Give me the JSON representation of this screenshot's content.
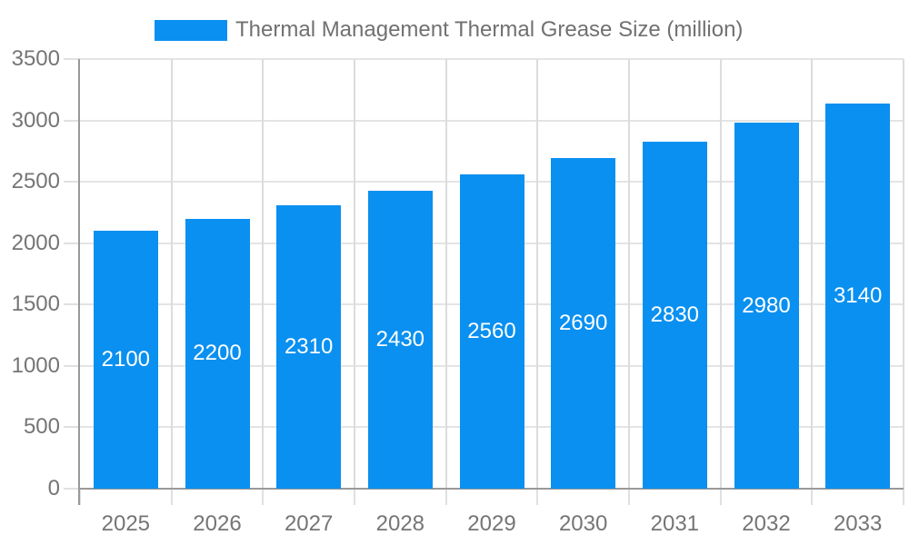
{
  "legend": {
    "label": "Thermal Management Thermal Grease Size (million)"
  },
  "chart_data": {
    "type": "bar",
    "title": "Thermal Management Thermal Grease Size (million)",
    "categories": [
      "2025",
      "2026",
      "2027",
      "2028",
      "2029",
      "2030",
      "2031",
      "2032",
      "2033"
    ],
    "series": [
      {
        "name": "Thermal Management Thermal Grease Size (million)",
        "values": [
          2100,
          2200,
          2310,
          2430,
          2560,
          2690,
          2830,
          2980,
          3140
        ]
      }
    ],
    "xlabel": "",
    "ylabel": "",
    "ylim": [
      0,
      3500
    ],
    "yticks": [
      0,
      500,
      1000,
      1500,
      2000,
      2500,
      3000,
      3500
    ],
    "grid": "both",
    "legend_position": "top",
    "bar_labels": "inside-middle",
    "colors": {
      "bar": "#0a90f0",
      "bar_label": "#ffffff",
      "axis_text": "#757575",
      "legend_text": "#717171",
      "gridline_h": "#e4e4e4",
      "gridline_v": "#dcdcdc",
      "tick": "#e0e0e0",
      "axis_line": "#999999",
      "background": "#ffffff"
    }
  }
}
